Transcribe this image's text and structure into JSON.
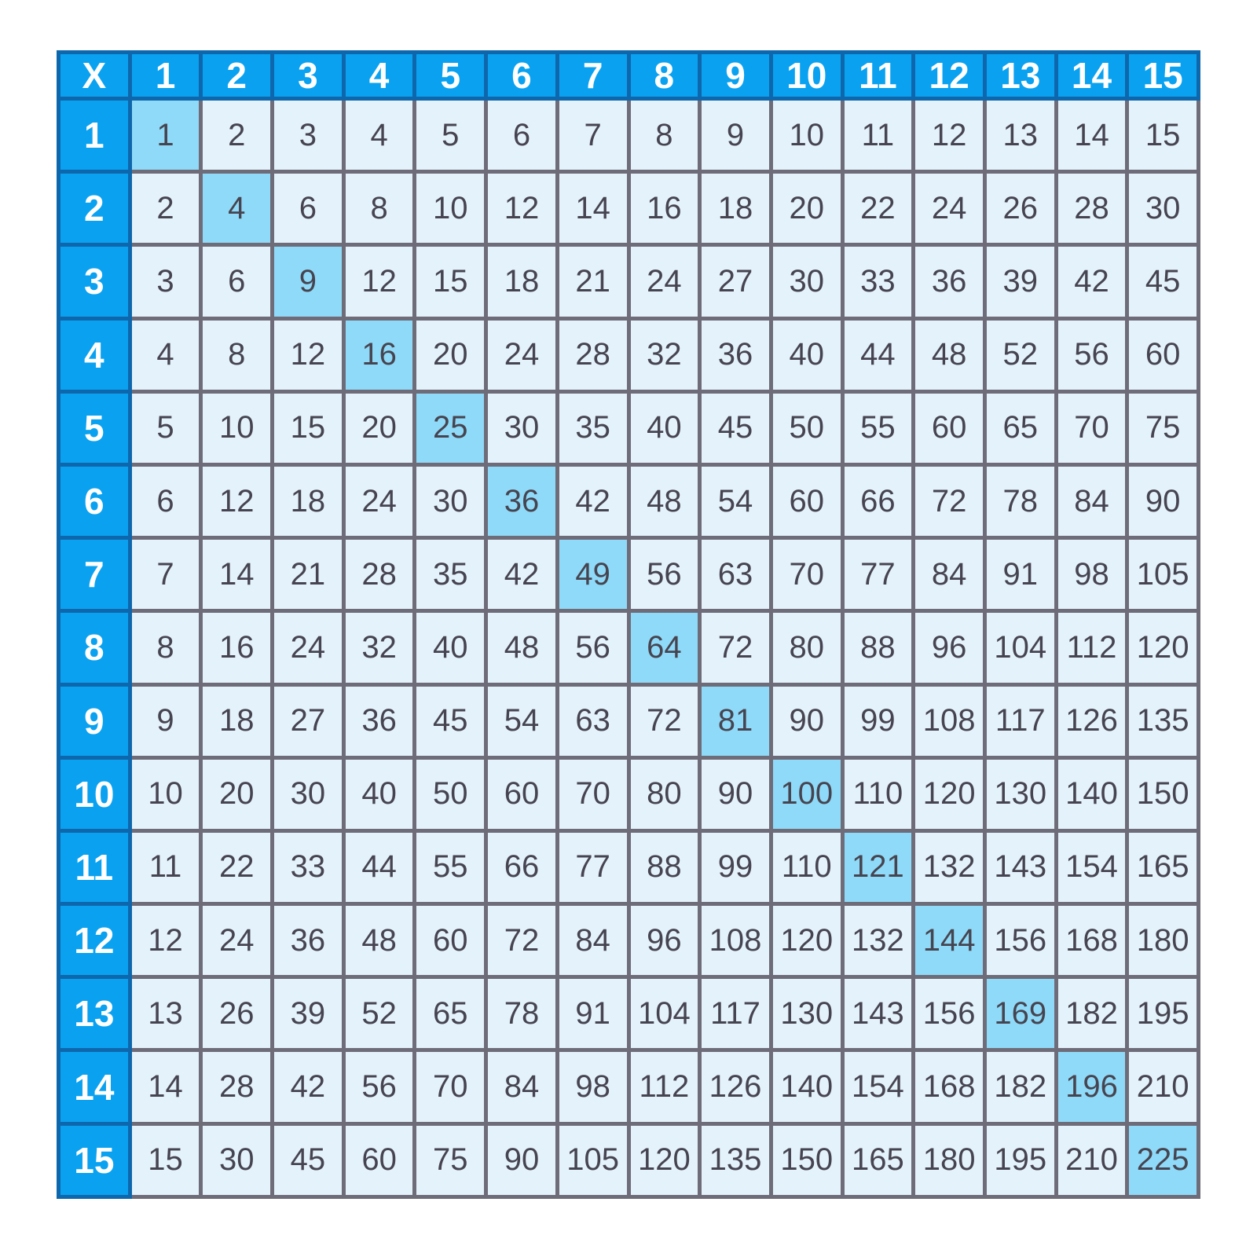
{
  "chart_data": {
    "type": "table",
    "title": "",
    "corner_label": "X",
    "column_headers": [
      "1",
      "2",
      "3",
      "4",
      "5",
      "6",
      "7",
      "8",
      "9",
      "10",
      "11",
      "12",
      "13",
      "14",
      "15"
    ],
    "row_headers": [
      "1",
      "2",
      "3",
      "4",
      "5",
      "6",
      "7",
      "8",
      "9",
      "10",
      "11",
      "12",
      "13",
      "14",
      "15"
    ],
    "rows": [
      [
        1,
        2,
        3,
        4,
        5,
        6,
        7,
        8,
        9,
        10,
        11,
        12,
        13,
        14,
        15
      ],
      [
        2,
        4,
        6,
        8,
        10,
        12,
        14,
        16,
        18,
        20,
        22,
        24,
        26,
        28,
        30
      ],
      [
        3,
        6,
        9,
        12,
        15,
        18,
        21,
        24,
        27,
        30,
        33,
        36,
        39,
        42,
        45
      ],
      [
        4,
        8,
        12,
        16,
        20,
        24,
        28,
        32,
        36,
        40,
        44,
        48,
        52,
        56,
        60
      ],
      [
        5,
        10,
        15,
        20,
        25,
        30,
        35,
        40,
        45,
        50,
        55,
        60,
        65,
        70,
        75
      ],
      [
        6,
        12,
        18,
        24,
        30,
        36,
        42,
        48,
        54,
        60,
        66,
        72,
        78,
        84,
        90
      ],
      [
        7,
        14,
        21,
        28,
        35,
        42,
        49,
        56,
        63,
        70,
        77,
        84,
        91,
        98,
        105
      ],
      [
        8,
        16,
        24,
        32,
        40,
        48,
        56,
        64,
        72,
        80,
        88,
        96,
        104,
        112,
        120
      ],
      [
        9,
        18,
        27,
        36,
        45,
        54,
        63,
        72,
        81,
        90,
        99,
        108,
        117,
        126,
        135
      ],
      [
        10,
        20,
        30,
        40,
        50,
        60,
        70,
        80,
        90,
        100,
        110,
        120,
        130,
        140,
        150
      ],
      [
        11,
        22,
        33,
        44,
        55,
        66,
        77,
        88,
        99,
        110,
        121,
        132,
        143,
        154,
        165
      ],
      [
        12,
        24,
        36,
        48,
        60,
        72,
        84,
        96,
        108,
        120,
        132,
        144,
        156,
        168,
        180
      ],
      [
        13,
        26,
        39,
        52,
        65,
        78,
        91,
        104,
        117,
        130,
        143,
        156,
        169,
        182,
        195
      ],
      [
        14,
        28,
        42,
        56,
        70,
        84,
        98,
        112,
        126,
        140,
        154,
        168,
        182,
        196,
        210
      ],
      [
        15,
        30,
        45,
        60,
        75,
        90,
        105,
        120,
        135,
        150,
        165,
        180,
        195,
        210,
        225
      ]
    ],
    "highlighted_values": [
      1,
      4,
      9,
      16,
      25,
      36,
      49,
      64,
      81,
      100,
      121,
      144,
      169,
      196,
      225
    ],
    "highlight_rule": "diagonal cell where row index equals column index (perfect squares)",
    "grid": true,
    "legend": "none"
  },
  "colors": {
    "page_bg": "#FFFFFF",
    "header_bg": "#0AA2F0",
    "header_border": "#0E67AC",
    "header_text": "#FFFFFF",
    "cell_bg": "#E4F2FB",
    "highlight_bg": "#8FDAF8",
    "grid_border": "#6F6C79",
    "cell_text": "#464450"
  }
}
